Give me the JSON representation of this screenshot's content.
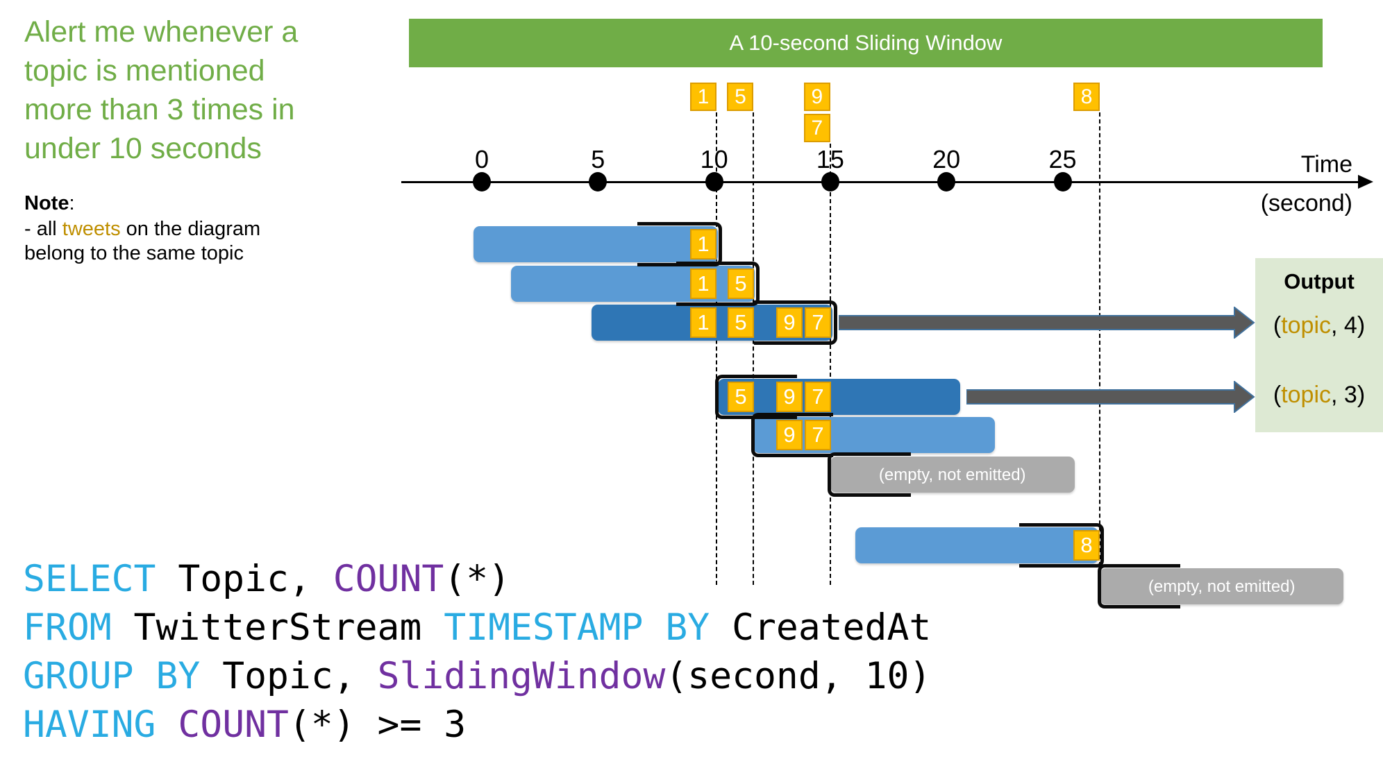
{
  "alert": {
    "text": "Alert me whenever a\ntopic is mentioned\nmore than 3 times in\nunder 10 seconds"
  },
  "note": {
    "title": "Note",
    "colon": ":",
    "segments": [
      {
        "t": "- all ",
        "c": "plain"
      },
      {
        "t": "tweets",
        "c": "gold"
      },
      {
        "t": " on the diagram\nbelong to the same topic",
        "c": "plain"
      }
    ]
  },
  "banner": {
    "title": "A 10-second Sliding Window"
  },
  "timeline": {
    "ticks": [
      "0",
      "5",
      "10",
      "15",
      "20",
      "25"
    ],
    "axis_label": "Time",
    "axis_unit": "(second)"
  },
  "events": [
    {
      "label": "1",
      "time": 10.1
    },
    {
      "label": "5",
      "time": 11.7
    },
    {
      "label": "9",
      "time": 15
    },
    {
      "label": "7",
      "time": 15
    },
    {
      "label": "8",
      "time": 26.6
    }
  ],
  "windows": [
    {
      "start": -0.36,
      "end": 10.15,
      "events": [
        "1"
      ],
      "style": "candidate"
    },
    {
      "start": 1.25,
      "end": 11.76,
      "events": [
        "1",
        "5"
      ],
      "style": "candidate"
    },
    {
      "start": 4.72,
      "end": 15.1,
      "events": [
        "1",
        "5",
        "9",
        "7"
      ],
      "style": "emitted"
    },
    {
      "start": 10.15,
      "end": 20.6,
      "events": [
        "5",
        "9",
        "7"
      ],
      "style": "emitted"
    },
    {
      "start": 11.7,
      "end": 22.09,
      "events": [
        "9",
        "7"
      ],
      "style": "candidate"
    },
    {
      "start": 14.99,
      "end": 25.52,
      "events": [],
      "style": "empty",
      "label": "(empty, not emitted)"
    },
    {
      "start": 16.09,
      "end": 26.54,
      "events": [
        "8"
      ],
      "style": "candidate"
    },
    {
      "start": 26.6,
      "end": 37.1,
      "events": [],
      "style": "empty",
      "label": "(empty, not emitted)"
    }
  ],
  "output": {
    "title": "Output",
    "results": [
      {
        "open": "(",
        "topic": "topic",
        "rest": ", 4)"
      },
      {
        "open": "(",
        "topic": "topic",
        "rest": ", 3)"
      }
    ]
  },
  "sql": {
    "lines": [
      [
        {
          "t": "SELECT",
          "c": "kw"
        },
        {
          "t": " Topic, ",
          "c": "pl"
        },
        {
          "t": "COUNT",
          "c": "fn"
        },
        {
          "t": "(*)",
          "c": "pl"
        }
      ],
      [
        {
          "t": "FROM",
          "c": "kw"
        },
        {
          "t": " TwitterStream ",
          "c": "pl"
        },
        {
          "t": "TIMESTAMP BY",
          "c": "kw"
        },
        {
          "t": " CreatedAt",
          "c": "pl"
        }
      ],
      [
        {
          "t": "GROUP BY",
          "c": "kw"
        },
        {
          "t": " Topic, ",
          "c": "pl"
        },
        {
          "t": "SlidingWindow",
          "c": "fn"
        },
        {
          "t": "(second, 10)",
          "c": "pl"
        }
      ],
      [
        {
          "t": "HAVING",
          "c": "kw"
        },
        {
          "t": " ",
          "c": "pl"
        },
        {
          "t": "COUNT",
          "c": "fn"
        },
        {
          "t": "(*) >= 3",
          "c": "pl"
        }
      ]
    ]
  },
  "colors": {
    "green": "#70AD47",
    "gold": "#FFC000",
    "goldtext": "#BF8F00",
    "lightblue": "#5B9BD5",
    "darkblue": "#2F76B5",
    "gray": "#ABABAB",
    "cyan": "#29ABE2",
    "purple": "#7030A0",
    "arrowfill": "#595959",
    "arrowedge": "#41719C"
  }
}
